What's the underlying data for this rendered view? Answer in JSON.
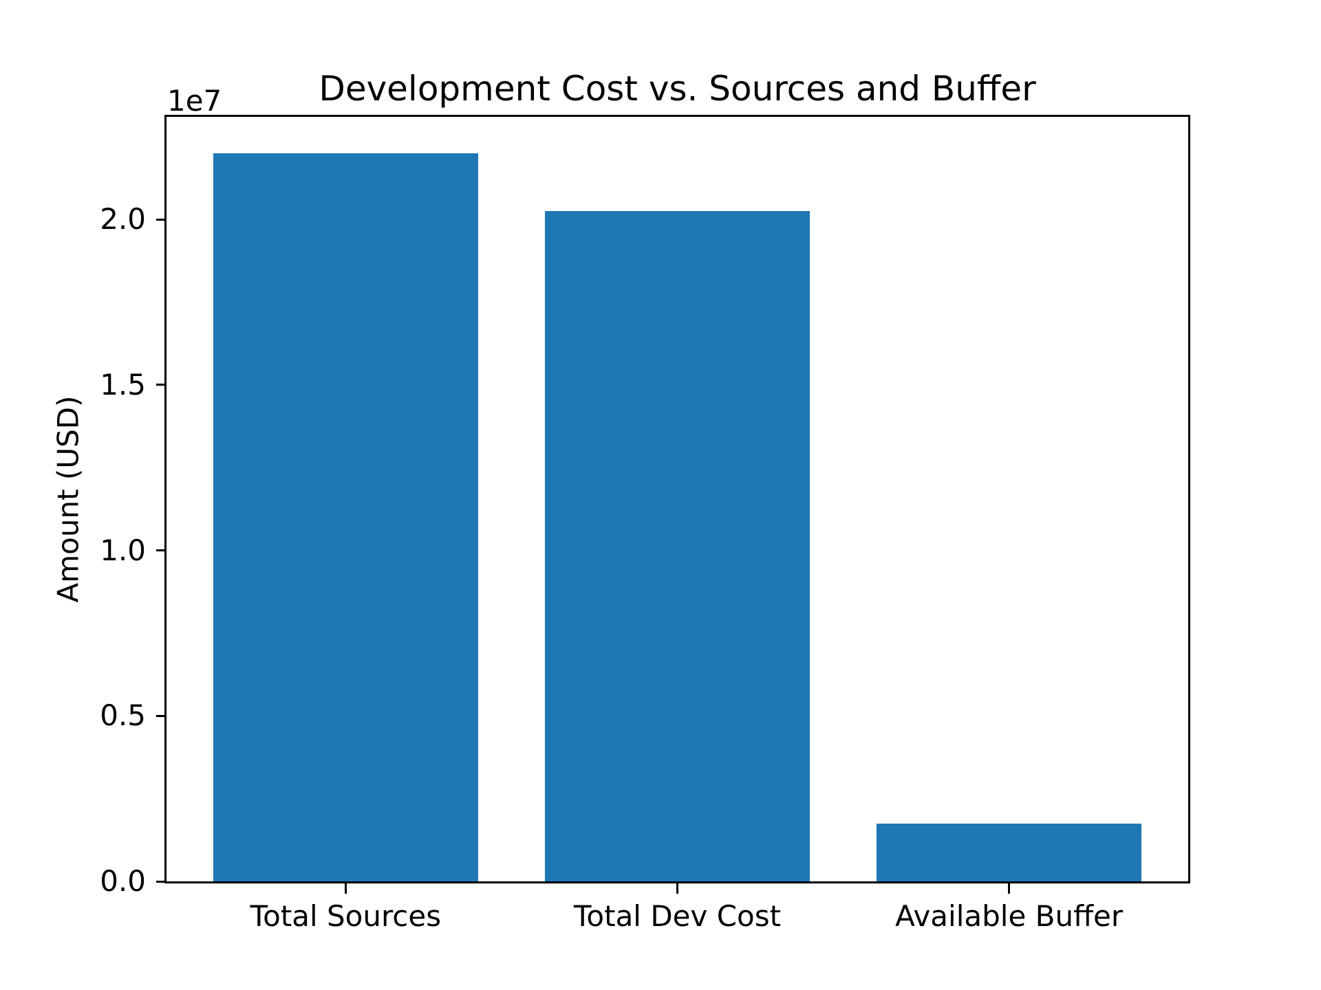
{
  "chart_data": {
    "type": "bar",
    "title": "Development Cost vs. Sources and Buffer",
    "ylabel": "Amount (USD)",
    "xlabel": "",
    "categories": [
      "Total Sources",
      "Total Dev Cost",
      "Available Buffer"
    ],
    "values": [
      22000000,
      20250000,
      1750000
    ],
    "bar_color": "#1f77b4",
    "bar_width_units": 0.8,
    "xlim": [
      -0.54,
      2.54
    ],
    "ylim": [
      0,
      23100000
    ],
    "yticks": [
      0,
      5000000,
      10000000,
      15000000,
      20000000
    ],
    "ytick_labels": [
      "0.0",
      "0.5",
      "1.0",
      "1.5",
      "2.0"
    ],
    "y_offset_text": "1e7",
    "grid": false,
    "legend": false,
    "background_color": "#ffffff",
    "axis_color": "#000000"
  }
}
